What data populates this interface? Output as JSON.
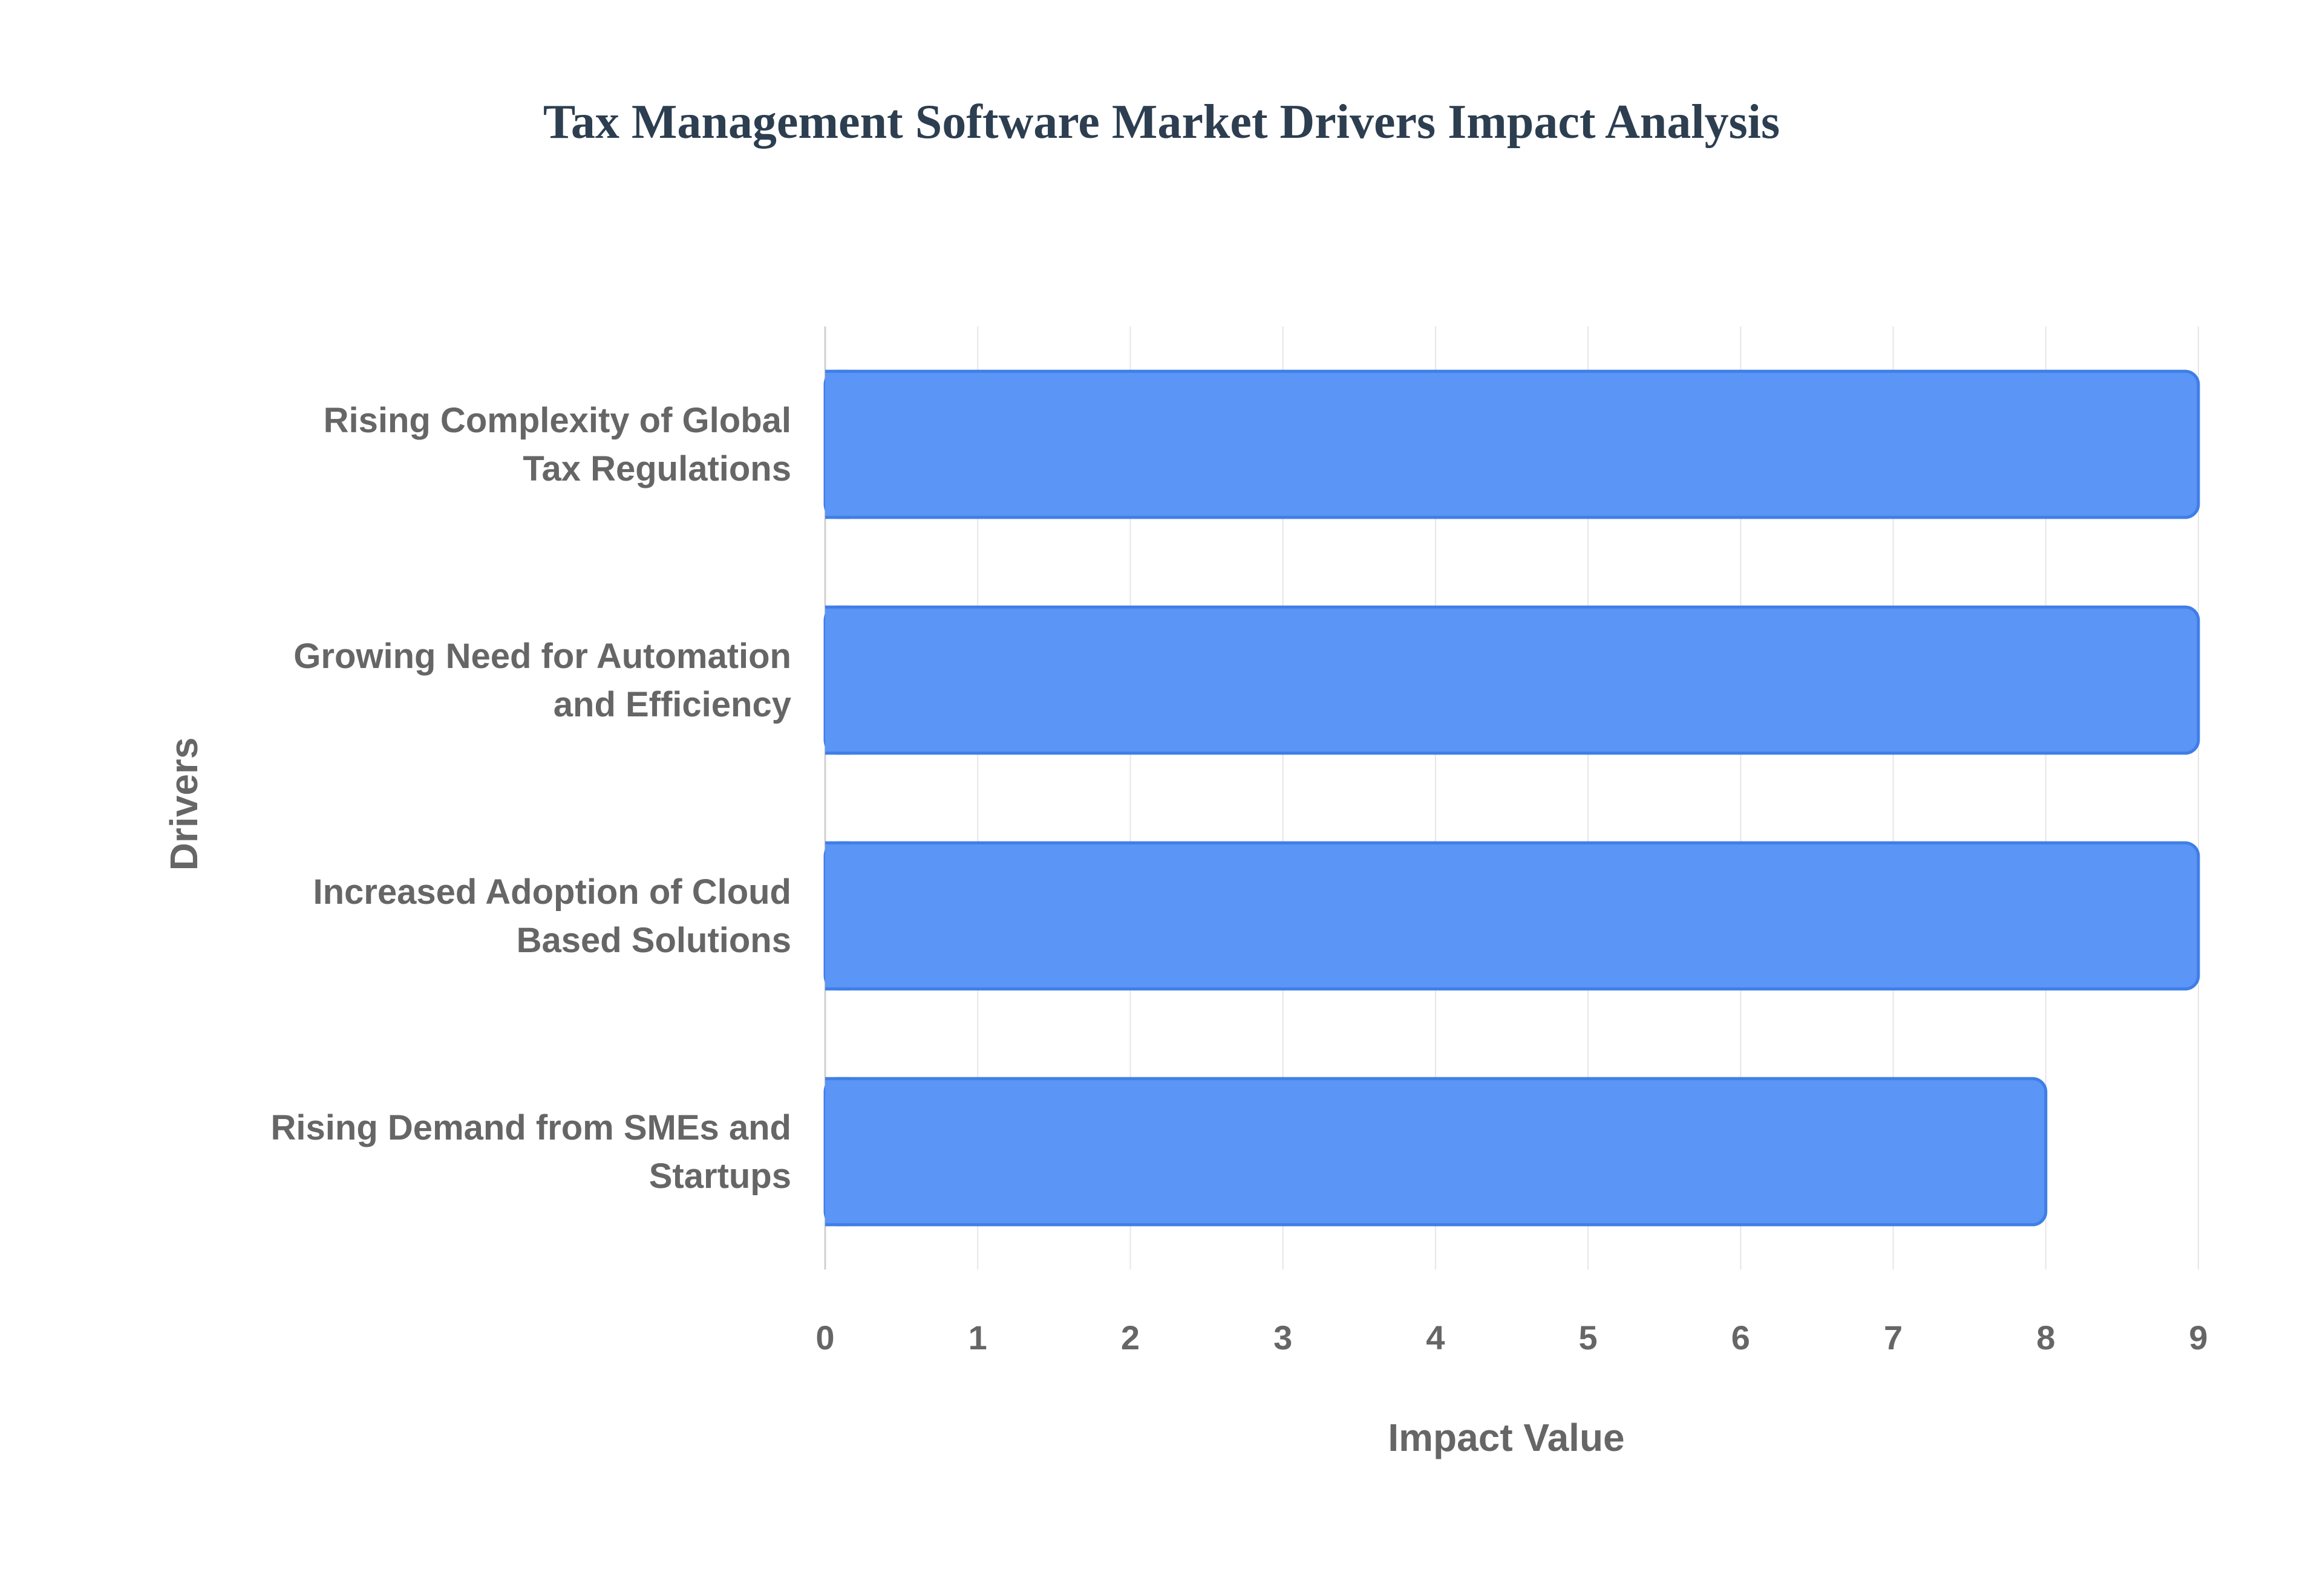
{
  "chart_data": {
    "type": "bar",
    "orientation": "horizontal",
    "title": "Tax Management Software Market Drivers Impact Analysis",
    "xlabel": "Impact Value",
    "ylabel": "Drivers",
    "categories": [
      [
        "Rising Complexity of Global",
        "Tax Regulations"
      ],
      [
        "Growing Need for Automation",
        "and Efficiency"
      ],
      [
        "Increased Adoption of Cloud",
        "Based Solutions"
      ],
      [
        "Rising Demand from SMEs and",
        "Startups"
      ]
    ],
    "values": [
      9,
      9,
      9,
      8
    ],
    "xlim": [
      0,
      9
    ],
    "xticks": [
      "0",
      "1",
      "2",
      "3",
      "4",
      "5",
      "6",
      "7",
      "8",
      "9"
    ],
    "grid": true,
    "legend": "none",
    "colors": {
      "bar_fill": "#5b95f5",
      "bar_stroke": "#3f7ee8",
      "grid": "#e6e6e6",
      "title": "#2c3e50",
      "axis_text": "#666666"
    }
  }
}
